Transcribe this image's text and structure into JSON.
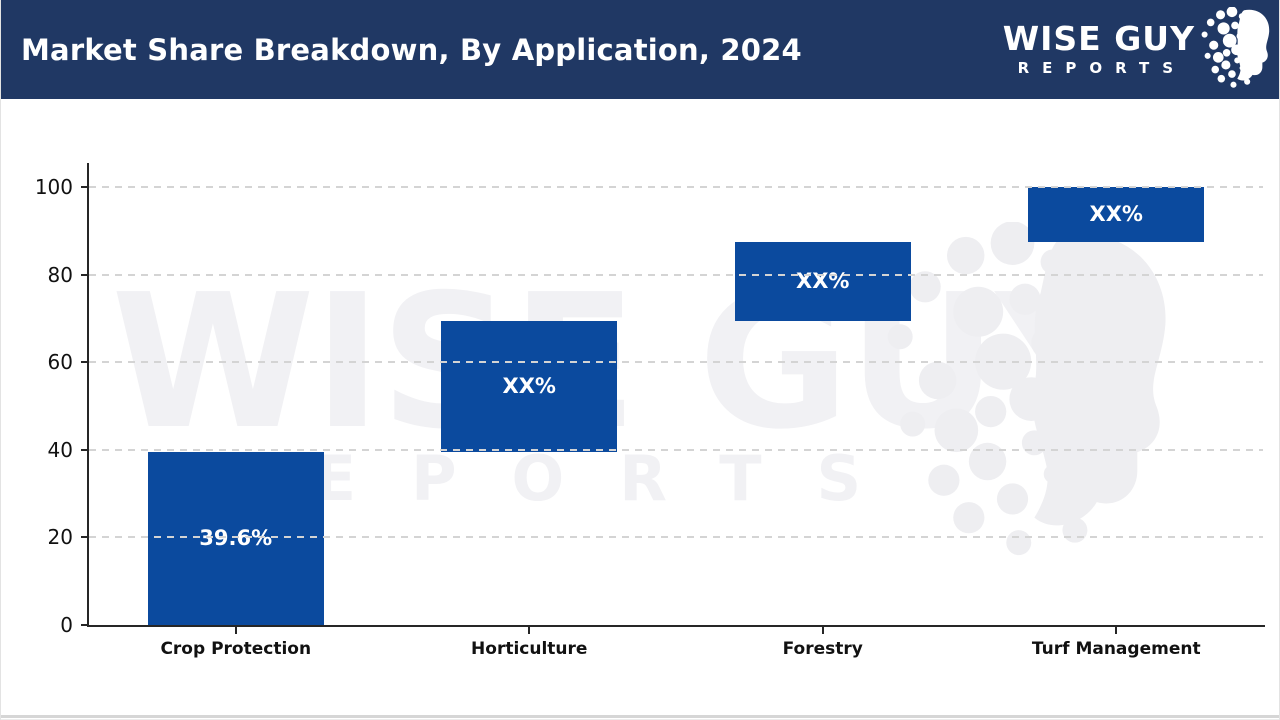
{
  "header": {
    "title": "Market Share Breakdown, By Application, 2024",
    "bg_color": "#203864",
    "logo": {
      "line1": "WISE GUY",
      "line2": "REPORTS"
    }
  },
  "watermark": {
    "line1": "WISE GUY",
    "line2": "REPORTS"
  },
  "chart_data": {
    "type": "bar",
    "subtype": "floating-segment-waterfall",
    "title": "Market Share Breakdown, By Application, 2024",
    "categories": [
      "Crop Protection",
      "Horticulture",
      "Forestry",
      "Turf Management"
    ],
    "segments": [
      {
        "category": "Crop Protection",
        "start": 0,
        "end": 39.6,
        "label": "39.6%"
      },
      {
        "category": "Horticulture",
        "start": 39.6,
        "end": 69.4,
        "label": "XX%"
      },
      {
        "category": "Forestry",
        "start": 69.4,
        "end": 87.5,
        "label": "XX%"
      },
      {
        "category": "Turf Management",
        "start": 87.5,
        "end": 100,
        "label": "XX%"
      }
    ],
    "xlabel": "",
    "ylabel": "",
    "ylim": [
      0,
      100
    ],
    "yticks": [
      0,
      20,
      40,
      60,
      80,
      100
    ],
    "grid": "horizontal-dashed-over-bars",
    "legend": "none",
    "bar_color": "#0b4a9e",
    "bar_label_color": "#ffffff",
    "grid_color": "#d4d4d4",
    "axis_color": "#262626",
    "watermark_color": "#f1f1f4"
  }
}
